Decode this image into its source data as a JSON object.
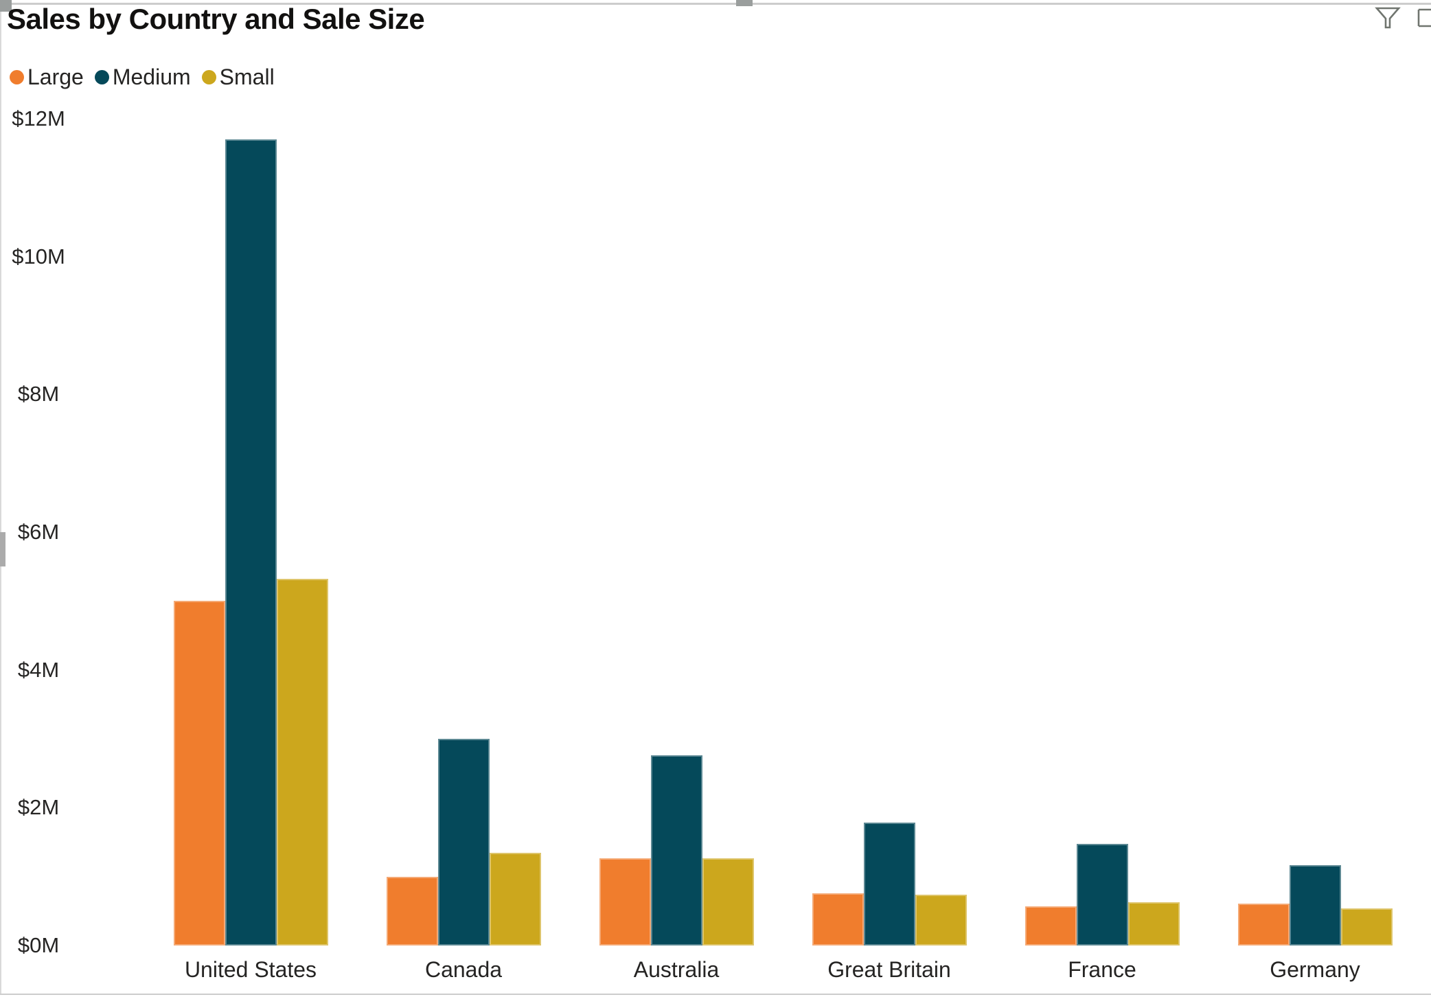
{
  "visual": {
    "toolbar": {
      "filter_icon": "filter-funnel",
      "clipped_right_icon": "focus-mode (clipped at edge)"
    }
  },
  "chart_data": {
    "type": "bar",
    "subtype": "clustered-column",
    "title": "Sales by Country and Sale Size",
    "categories": [
      "United States",
      "Canada",
      "Australia",
      "Great Britain",
      "France",
      "Germany"
    ],
    "series": [
      {
        "name": "Large",
        "color": "#F07D2D",
        "values": [
          5.0,
          1.0,
          1.27,
          0.76,
          0.57,
          0.61
        ]
      },
      {
        "name": "Medium",
        "color": "#05495A",
        "values": [
          11.7,
          3.0,
          2.76,
          1.78,
          1.47,
          1.17
        ]
      },
      {
        "name": "Small",
        "color": "#CCA71D",
        "values": [
          5.32,
          1.35,
          1.27,
          0.74,
          0.63,
          0.54
        ]
      }
    ],
    "values_unit": "millions USD",
    "y_axis": {
      "ticks": [
        "$0M",
        "$2M",
        "$4M",
        "$6M",
        "$8M",
        "$10M",
        "$12M"
      ],
      "tick_values": [
        0,
        2,
        4,
        6,
        8,
        10,
        12
      ],
      "min": 0,
      "max": 12
    },
    "x_axis": {
      "label": ""
    },
    "legend": {
      "position": "top-left",
      "entries": [
        "Large",
        "Medium",
        "Small"
      ]
    },
    "grid": false,
    "colors": {
      "text": "#252423",
      "title": "#121110",
      "selection_border": "#cccccc",
      "selection_handle": "#9a9e9d",
      "icon": "#70756f",
      "background": "#ffffff"
    }
  }
}
